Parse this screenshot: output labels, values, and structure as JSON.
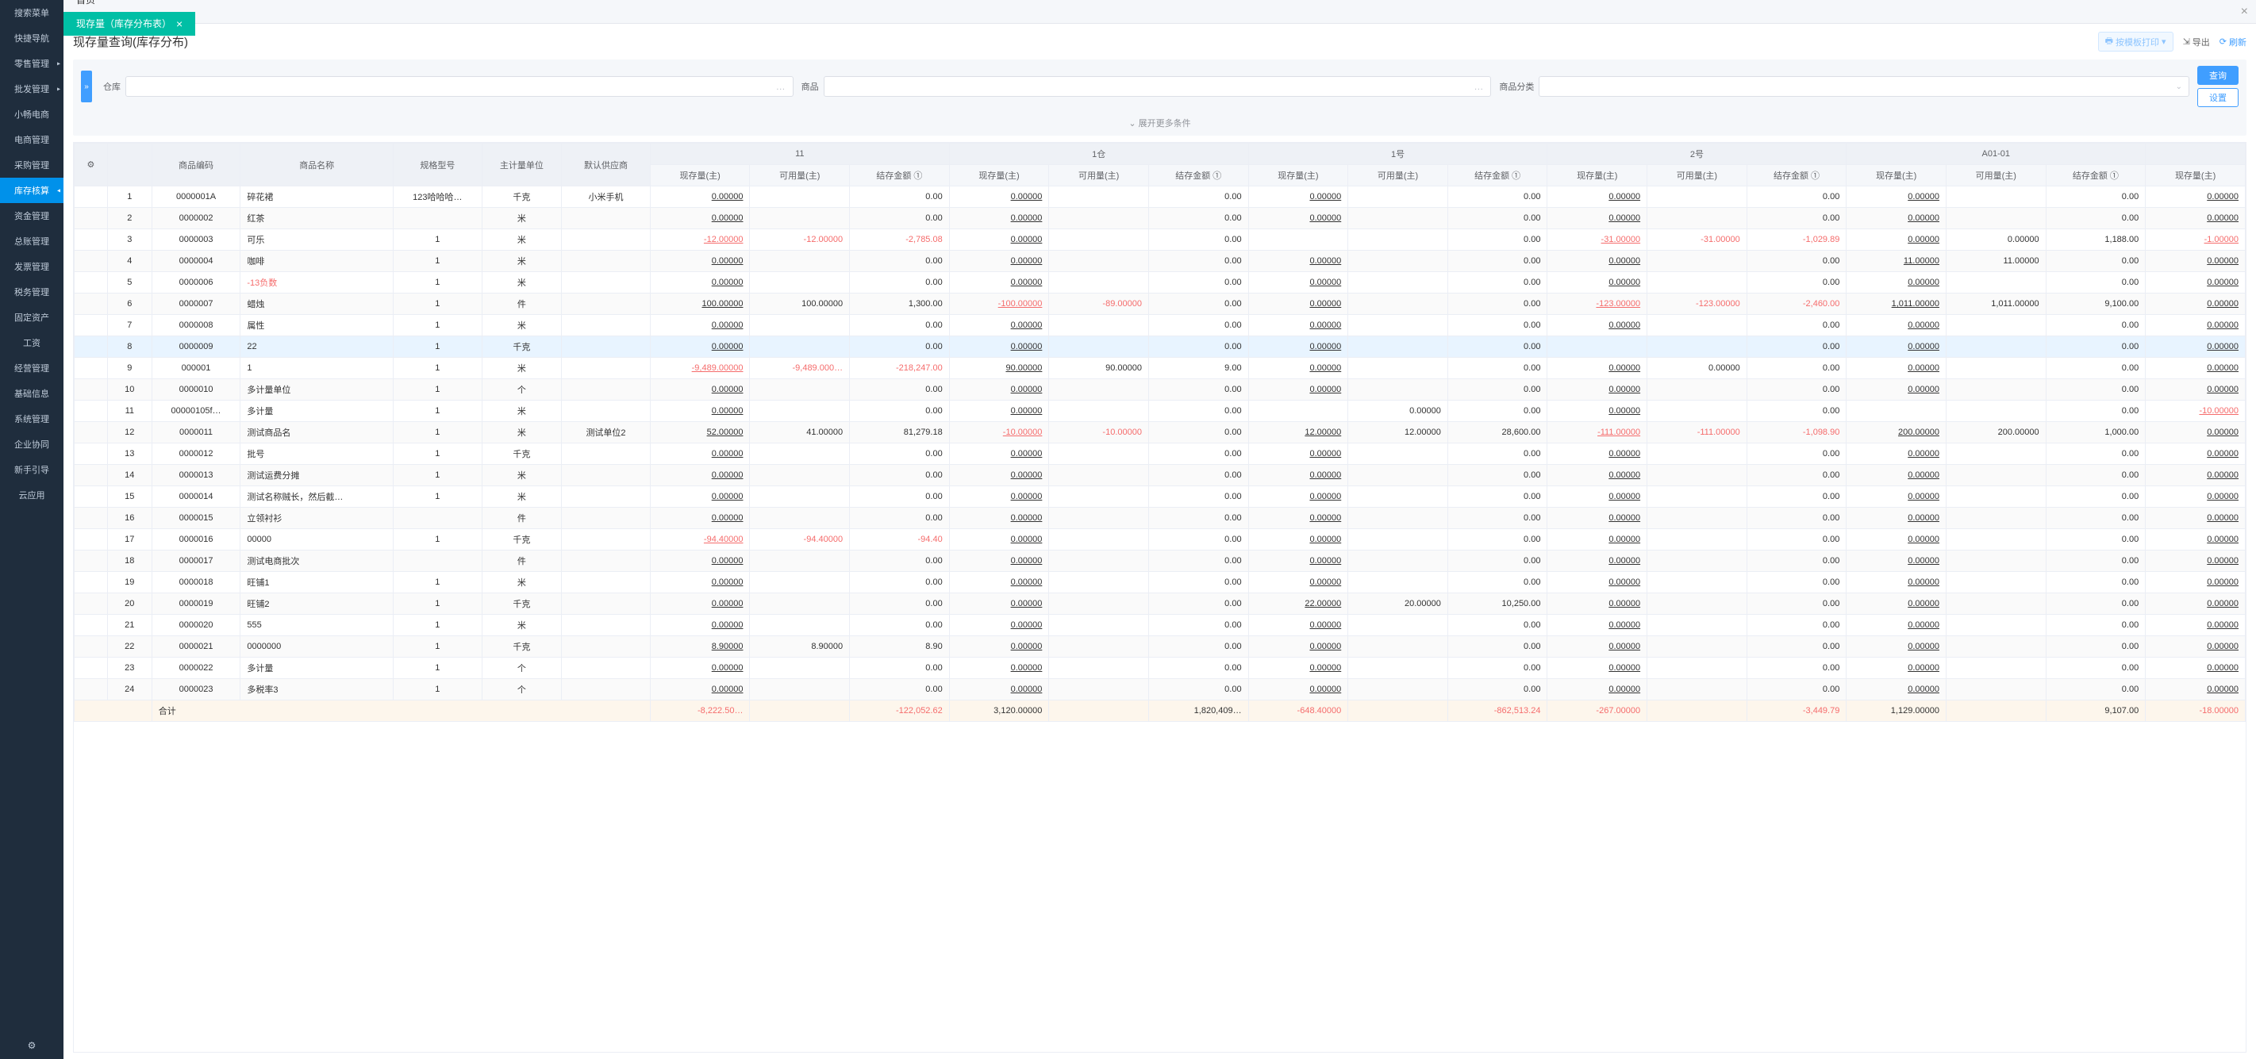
{
  "sidebar": {
    "items": [
      {
        "label": "搜索菜单",
        "arrow": false
      },
      {
        "label": "快捷导航",
        "arrow": false
      },
      {
        "label": "零售管理",
        "arrow": true
      },
      {
        "label": "批发管理",
        "arrow": true
      },
      {
        "label": "小畅电商",
        "arrow": false
      },
      {
        "label": "电商管理",
        "arrow": false
      },
      {
        "label": "采购管理",
        "arrow": false
      },
      {
        "label": "库存核算",
        "arrow": false,
        "active": true
      },
      {
        "label": "资金管理",
        "arrow": false
      },
      {
        "label": "总账管理",
        "arrow": false
      },
      {
        "label": "发票管理",
        "arrow": false
      },
      {
        "label": "税务管理",
        "arrow": false
      },
      {
        "label": "固定资产",
        "arrow": false
      },
      {
        "label": "工资",
        "arrow": false
      },
      {
        "label": "经营管理",
        "arrow": false
      },
      {
        "label": "基础信息",
        "arrow": false
      },
      {
        "label": "系统管理",
        "arrow": false
      },
      {
        "label": "企业协同",
        "arrow": false
      },
      {
        "label": "新手引导",
        "arrow": false
      },
      {
        "label": "云应用",
        "arrow": false
      }
    ]
  },
  "tabs": [
    {
      "label": "首页",
      "closable": false
    },
    {
      "label": "现存量（库存分布表）",
      "closable": true,
      "active": true
    }
  ],
  "page": {
    "title": "现存量查询(库存分布)",
    "actions": {
      "print": "按模板打印",
      "export": "导出",
      "refresh": "刷新"
    }
  },
  "filters": {
    "warehouse_label": "仓库",
    "product_label": "商品",
    "category_label": "商品分类",
    "query_btn": "查询",
    "settings_btn": "设置",
    "expand": "展开更多条件"
  },
  "table": {
    "fixed_headers": [
      "商品编码",
      "商品名称",
      "规格型号",
      "主计量单位",
      "默认供应商"
    ],
    "warehouse_groups": [
      "11",
      "1仓",
      "1号",
      "2号",
      "A01-01"
    ],
    "sub_headers": [
      "现存量(主)",
      "可用量(主)",
      "结存金额 ①"
    ],
    "extra_col": "现存量(主)",
    "rows": [
      {
        "idx": 1,
        "code": "0000001A",
        "name": "碎花裙",
        "spec": "123哈哈哈…",
        "unit": "千克",
        "supp": "小米手机",
        "w": [
          [
            "0.00000",
            "",
            "0.00"
          ],
          [
            "0.00000",
            "",
            "0.00"
          ],
          [
            "0.00000",
            "",
            "0.00"
          ],
          [
            "0.00000",
            "",
            "0.00"
          ],
          [
            "0.00000",
            "",
            "0.00"
          ]
        ],
        "ext": "0.00000"
      },
      {
        "idx": 2,
        "code": "0000002",
        "name": "红茶",
        "spec": "",
        "unit": "米",
        "supp": "",
        "w": [
          [
            "0.00000",
            "",
            "0.00"
          ],
          [
            "0.00000",
            "",
            "0.00"
          ],
          [
            "0.00000",
            "",
            "0.00"
          ],
          [
            "0.00000",
            "",
            "0.00"
          ],
          [
            "0.00000",
            "",
            "0.00"
          ]
        ],
        "ext": "0.00000"
      },
      {
        "idx": 3,
        "code": "0000003",
        "name": "可乐",
        "spec": "1",
        "unit": "米",
        "supp": "",
        "w": [
          [
            "-12.00000",
            "-12.00000",
            "-2,785.08"
          ],
          [
            "0.00000",
            "",
            "0.00"
          ],
          [
            "",
            "",
            "0.00"
          ],
          [
            "-31.00000",
            "-31.00000",
            "-1,029.89"
          ],
          [
            "0.00000",
            "0.00000",
            "1,188.00"
          ]
        ],
        "ext": "-1.00000",
        "neg": [
          [
            0,
            0
          ],
          [
            0,
            1
          ],
          [
            0,
            2
          ],
          [
            3,
            0
          ],
          [
            3,
            1
          ],
          [
            3,
            2
          ]
        ],
        "ext_neg": true
      },
      {
        "idx": 4,
        "code": "0000004",
        "name": "咖啡",
        "spec": "1",
        "unit": "米",
        "supp": "",
        "w": [
          [
            "0.00000",
            "",
            "0.00"
          ],
          [
            "0.00000",
            "",
            "0.00"
          ],
          [
            "0.00000",
            "",
            "0.00"
          ],
          [
            "0.00000",
            "",
            "0.00"
          ],
          [
            "11.00000",
            "11.00000",
            "0.00"
          ]
        ],
        "ext": "0.00000"
      },
      {
        "idx": 5,
        "code": "0000006",
        "name": "-13负数",
        "name_neg": true,
        "spec": "1",
        "unit": "米",
        "supp": "",
        "w": [
          [
            "0.00000",
            "",
            "0.00"
          ],
          [
            "0.00000",
            "",
            "0.00"
          ],
          [
            "0.00000",
            "",
            "0.00"
          ],
          [
            "0.00000",
            "",
            "0.00"
          ],
          [
            "0.00000",
            "",
            "0.00"
          ]
        ],
        "ext": "0.00000"
      },
      {
        "idx": 6,
        "code": "0000007",
        "name": "蜡烛",
        "spec": "1",
        "unit": "件",
        "supp": "",
        "w": [
          [
            "100.00000",
            "100.00000",
            "1,300.00"
          ],
          [
            "-100.00000",
            "-89.00000",
            "0.00"
          ],
          [
            "0.00000",
            "",
            "0.00"
          ],
          [
            "-123.00000",
            "-123.00000",
            "-2,460.00"
          ],
          [
            "1,011.00000",
            "1,011.00000",
            "9,100.00"
          ]
        ],
        "ext": "0.00000",
        "neg": [
          [
            1,
            0
          ],
          [
            1,
            1
          ],
          [
            3,
            0
          ],
          [
            3,
            1
          ],
          [
            3,
            2
          ]
        ]
      },
      {
        "idx": 7,
        "code": "0000008",
        "name": "属性",
        "spec": "1",
        "unit": "米",
        "supp": "",
        "w": [
          [
            "0.00000",
            "",
            "0.00"
          ],
          [
            "0.00000",
            "",
            "0.00"
          ],
          [
            "0.00000",
            "",
            "0.00"
          ],
          [
            "0.00000",
            "",
            "0.00"
          ],
          [
            "0.00000",
            "",
            "0.00"
          ]
        ],
        "ext": "0.00000"
      },
      {
        "idx": 8,
        "code": "0000009",
        "name": "22",
        "spec": "1",
        "unit": "千克",
        "supp": "",
        "highlight": true,
        "w": [
          [
            "0.00000",
            "",
            "0.00"
          ],
          [
            "0.00000",
            "",
            "0.00"
          ],
          [
            "0.00000",
            "",
            "0.00"
          ],
          [
            "",
            "",
            "0.00"
          ],
          [
            "0.00000",
            "",
            "0.00"
          ]
        ],
        "ext": "0.00000"
      },
      {
        "idx": 9,
        "code": "000001",
        "name": "1",
        "spec": "1",
        "unit": "米",
        "supp": "",
        "w": [
          [
            "-9,489.00000",
            "-9,489.000…",
            "-218,247.00"
          ],
          [
            "90.00000",
            "90.00000",
            "9.00"
          ],
          [
            "0.00000",
            "",
            "0.00"
          ],
          [
            "0.00000",
            "0.00000",
            "0.00"
          ],
          [
            "0.00000",
            "",
            "0.00"
          ]
        ],
        "ext": "0.00000",
        "neg": [
          [
            0,
            0
          ],
          [
            0,
            1
          ],
          [
            0,
            2
          ]
        ]
      },
      {
        "idx": 10,
        "code": "0000010",
        "name": "多计量单位",
        "spec": "1",
        "unit": "个",
        "supp": "",
        "w": [
          [
            "0.00000",
            "",
            "0.00"
          ],
          [
            "0.00000",
            "",
            "0.00"
          ],
          [
            "0.00000",
            "",
            "0.00"
          ],
          [
            "0.00000",
            "",
            "0.00"
          ],
          [
            "0.00000",
            "",
            "0.00"
          ]
        ],
        "ext": "0.00000"
      },
      {
        "idx": 11,
        "code": "00000105f…",
        "name": "多计量",
        "spec": "1",
        "unit": "米",
        "supp": "",
        "w": [
          [
            "0.00000",
            "",
            "0.00"
          ],
          [
            "0.00000",
            "",
            "0.00"
          ],
          [
            "",
            "0.00000",
            "0.00"
          ],
          [
            "0.00000",
            "",
            "0.00"
          ],
          [
            "",
            "",
            "0.00"
          ]
        ],
        "ext": "-10.00000",
        "ext_neg": true
      },
      {
        "idx": 12,
        "code": "0000011",
        "name": "测试商品名",
        "spec": "1",
        "unit": "米",
        "supp": "测试单位2",
        "w": [
          [
            "52.00000",
            "41.00000",
            "81,279.18"
          ],
          [
            "-10.00000",
            "-10.00000",
            "0.00"
          ],
          [
            "12.00000",
            "12.00000",
            "28,600.00"
          ],
          [
            "-111.00000",
            "-111.00000",
            "-1,098.90"
          ],
          [
            "200.00000",
            "200.00000",
            "1,000.00"
          ]
        ],
        "ext": "0.00000",
        "neg": [
          [
            1,
            0
          ],
          [
            1,
            1
          ],
          [
            3,
            0
          ],
          [
            3,
            1
          ],
          [
            3,
            2
          ]
        ]
      },
      {
        "idx": 13,
        "code": "0000012",
        "name": "批号",
        "spec": "1",
        "unit": "千克",
        "supp": "",
        "w": [
          [
            "0.00000",
            "",
            "0.00"
          ],
          [
            "0.00000",
            "",
            "0.00"
          ],
          [
            "0.00000",
            "",
            "0.00"
          ],
          [
            "0.00000",
            "",
            "0.00"
          ],
          [
            "0.00000",
            "",
            "0.00"
          ]
        ],
        "ext": "0.00000"
      },
      {
        "idx": 14,
        "code": "0000013",
        "name": "测试运费分摊",
        "spec": "1",
        "unit": "米",
        "supp": "",
        "w": [
          [
            "0.00000",
            "",
            "0.00"
          ],
          [
            "0.00000",
            "",
            "0.00"
          ],
          [
            "0.00000",
            "",
            "0.00"
          ],
          [
            "0.00000",
            "",
            "0.00"
          ],
          [
            "0.00000",
            "",
            "0.00"
          ]
        ],
        "ext": "0.00000"
      },
      {
        "idx": 15,
        "code": "0000014",
        "name": "测试名称贼长，然后截…",
        "spec": "1",
        "unit": "米",
        "supp": "",
        "w": [
          [
            "0.00000",
            "",
            "0.00"
          ],
          [
            "0.00000",
            "",
            "0.00"
          ],
          [
            "0.00000",
            "",
            "0.00"
          ],
          [
            "0.00000",
            "",
            "0.00"
          ],
          [
            "0.00000",
            "",
            "0.00"
          ]
        ],
        "ext": "0.00000"
      },
      {
        "idx": 16,
        "code": "0000015",
        "name": "立领衬衫",
        "spec": "",
        "unit": "件",
        "supp": "",
        "w": [
          [
            "0.00000",
            "",
            "0.00"
          ],
          [
            "0.00000",
            "",
            "0.00"
          ],
          [
            "0.00000",
            "",
            "0.00"
          ],
          [
            "0.00000",
            "",
            "0.00"
          ],
          [
            "0.00000",
            "",
            "0.00"
          ]
        ],
        "ext": "0.00000"
      },
      {
        "idx": 17,
        "code": "0000016",
        "name": "00000",
        "spec": "1",
        "unit": "千克",
        "supp": "",
        "w": [
          [
            "-94.40000",
            "-94.40000",
            "-94.40"
          ],
          [
            "0.00000",
            "",
            "0.00"
          ],
          [
            "0.00000",
            "",
            "0.00"
          ],
          [
            "0.00000",
            "",
            "0.00"
          ],
          [
            "0.00000",
            "",
            "0.00"
          ]
        ],
        "ext": "0.00000",
        "neg": [
          [
            0,
            0
          ],
          [
            0,
            1
          ],
          [
            0,
            2
          ]
        ]
      },
      {
        "idx": 18,
        "code": "0000017",
        "name": "测试电商批次",
        "spec": "",
        "unit": "件",
        "supp": "",
        "w": [
          [
            "0.00000",
            "",
            "0.00"
          ],
          [
            "0.00000",
            "",
            "0.00"
          ],
          [
            "0.00000",
            "",
            "0.00"
          ],
          [
            "0.00000",
            "",
            "0.00"
          ],
          [
            "0.00000",
            "",
            "0.00"
          ]
        ],
        "ext": "0.00000"
      },
      {
        "idx": 19,
        "code": "0000018",
        "name": "旺铺1",
        "spec": "1",
        "unit": "米",
        "supp": "",
        "w": [
          [
            "0.00000",
            "",
            "0.00"
          ],
          [
            "0.00000",
            "",
            "0.00"
          ],
          [
            "0.00000",
            "",
            "0.00"
          ],
          [
            "0.00000",
            "",
            "0.00"
          ],
          [
            "0.00000",
            "",
            "0.00"
          ]
        ],
        "ext": "0.00000"
      },
      {
        "idx": 20,
        "code": "0000019",
        "name": "旺铺2",
        "spec": "1",
        "unit": "千克",
        "supp": "",
        "w": [
          [
            "0.00000",
            "",
            "0.00"
          ],
          [
            "0.00000",
            "",
            "0.00"
          ],
          [
            "22.00000",
            "20.00000",
            "10,250.00"
          ],
          [
            "0.00000",
            "",
            "0.00"
          ],
          [
            "0.00000",
            "",
            "0.00"
          ]
        ],
        "ext": "0.00000"
      },
      {
        "idx": 21,
        "code": "0000020",
        "name": "555",
        "spec": "1",
        "unit": "米",
        "supp": "",
        "w": [
          [
            "0.00000",
            "",
            "0.00"
          ],
          [
            "0.00000",
            "",
            "0.00"
          ],
          [
            "0.00000",
            "",
            "0.00"
          ],
          [
            "0.00000",
            "",
            "0.00"
          ],
          [
            "0.00000",
            "",
            "0.00"
          ]
        ],
        "ext": "0.00000"
      },
      {
        "idx": 22,
        "code": "0000021",
        "name": "0000000",
        "spec": "1",
        "unit": "千克",
        "supp": "",
        "w": [
          [
            "8.90000",
            "8.90000",
            "8.90"
          ],
          [
            "0.00000",
            "",
            "0.00"
          ],
          [
            "0.00000",
            "",
            "0.00"
          ],
          [
            "0.00000",
            "",
            "0.00"
          ],
          [
            "0.00000",
            "",
            "0.00"
          ]
        ],
        "ext": "0.00000"
      },
      {
        "idx": 23,
        "code": "0000022",
        "name": "多计量",
        "spec": "1",
        "unit": "个",
        "supp": "",
        "w": [
          [
            "0.00000",
            "",
            "0.00"
          ],
          [
            "0.00000",
            "",
            "0.00"
          ],
          [
            "0.00000",
            "",
            "0.00"
          ],
          [
            "0.00000",
            "",
            "0.00"
          ],
          [
            "0.00000",
            "",
            "0.00"
          ]
        ],
        "ext": "0.00000"
      },
      {
        "idx": 24,
        "code": "0000023",
        "name": "多税率3",
        "spec": "1",
        "unit": "个",
        "supp": "",
        "w": [
          [
            "0.00000",
            "",
            "0.00"
          ],
          [
            "0.00000",
            "",
            "0.00"
          ],
          [
            "0.00000",
            "",
            "0.00"
          ],
          [
            "0.00000",
            "",
            "0.00"
          ],
          [
            "0.00000",
            "",
            "0.00"
          ]
        ],
        "ext": "0.00000"
      }
    ],
    "footer": {
      "label": "合计",
      "w": [
        [
          "-8,222.50…",
          "",
          "-122,052.62"
        ],
        [
          "3,120.00000",
          "",
          "1,820,409…"
        ],
        [
          "-648.40000",
          "",
          "-862,513.24"
        ],
        [
          "-267.00000",
          "",
          "-3,449.79"
        ],
        [
          "1,129.00000",
          "",
          "9,107.00"
        ]
      ],
      "ext": "-18.00000",
      "neg": [
        [
          0,
          0
        ],
        [
          0,
          2
        ],
        [
          2,
          0
        ],
        [
          2,
          2
        ],
        [
          3,
          0
        ],
        [
          3,
          2
        ]
      ],
      "ext_neg": true
    }
  }
}
